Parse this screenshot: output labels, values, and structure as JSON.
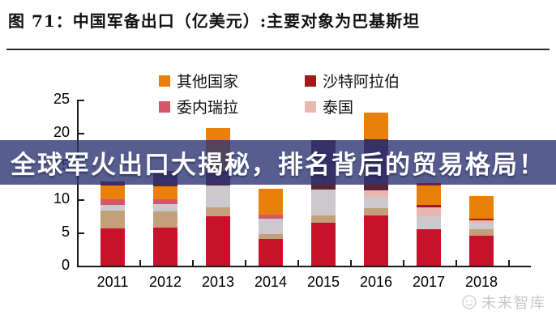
{
  "title": "图 71：中国军备出口（亿美元）:主要对象为巴基斯坦",
  "overlay": {
    "text": "全球军火出口大揭秘，排名背后的贸易格局！",
    "bg": "#2D3473"
  },
  "watermark": {
    "text": "未来智库"
  },
  "chart_data": {
    "type": "bar",
    "stacked": true,
    "title": "图 71：中国军备出口（亿美元）:主要对象为巴基斯坦",
    "categories": [
      "2011",
      "2012",
      "2013",
      "2014",
      "2015",
      "2016",
      "2017",
      "2018"
    ],
    "y_ticks": [
      0,
      5,
      10,
      15,
      20,
      25
    ],
    "ylim": [
      0,
      25
    ],
    "grid": false,
    "legend_position": "top",
    "legend": [
      {
        "label": "其他国家",
        "color_key": "orange"
      },
      {
        "label": "沙特阿拉伯",
        "color_key": "saudi_red"
      },
      {
        "label": "委内瑞拉",
        "color_key": "venezuela_rose"
      },
      {
        "label": "泰国",
        "color_key": "thai_pink"
      }
    ],
    "palette": {
      "red": "#C8112B",
      "tan": "#C2A07A",
      "gray": "#CCC9CE",
      "thai_pink": "#E9B7AF",
      "venezuela_rose": "#D4566A",
      "saudi_red": "#9E1B1A",
      "dark_wine": "#5A2433",
      "orange": "#E8800A"
    },
    "bars": [
      {
        "year": "2011",
        "total": 12.7,
        "segments": [
          [
            "red",
            5.6
          ],
          [
            "tan",
            2.7
          ],
          [
            "gray",
            0.8
          ],
          [
            "venezuela_rose",
            0.9
          ],
          [
            "orange",
            2.1
          ],
          [
            "dark_wine",
            0.6
          ]
        ]
      },
      {
        "year": "2012",
        "total": 14.3,
        "segments": [
          [
            "red",
            5.7
          ],
          [
            "tan",
            2.5
          ],
          [
            "gray",
            1.1
          ],
          [
            "venezuela_rose",
            0.7
          ],
          [
            "orange",
            2.0
          ],
          [
            "dark_wine",
            2.3
          ]
        ]
      },
      {
        "year": "2013",
        "total": 20.7,
        "segments": [
          [
            "red",
            7.4
          ],
          [
            "tan",
            1.4
          ],
          [
            "gray",
            3.3
          ],
          [
            "dark_wine",
            2.2
          ],
          [
            "orange",
            6.4
          ]
        ]
      },
      {
        "year": "2014",
        "total": 11.6,
        "segments": [
          [
            "red",
            4.0
          ],
          [
            "tan",
            0.7
          ],
          [
            "gray",
            2.4
          ],
          [
            "venezuela_rose",
            0.6
          ],
          [
            "orange",
            3.9
          ]
        ]
      },
      {
        "year": "2015",
        "total": 18.9,
        "segments": [
          [
            "red",
            6.5
          ],
          [
            "tan",
            1.1
          ],
          [
            "gray",
            3.9
          ],
          [
            "dark_wine",
            7.4
          ]
        ]
      },
      {
        "year": "2016",
        "total": 23.0,
        "segments": [
          [
            "red",
            7.6
          ],
          [
            "tan",
            1.0
          ],
          [
            "gray",
            1.8
          ],
          [
            "thai_pink",
            0.9
          ],
          [
            "dark_wine",
            7.7
          ],
          [
            "orange",
            4.0
          ]
        ]
      },
      {
        "year": "2017",
        "total": 12.5,
        "segments": [
          [
            "red",
            5.5
          ],
          [
            "gray",
            1.9
          ],
          [
            "thai_pink",
            1.4
          ],
          [
            "saudi_red",
            0.4
          ],
          [
            "orange",
            2.9
          ],
          [
            "saudi_red",
            0.4
          ]
        ]
      },
      {
        "year": "2018",
        "total": 10.5,
        "segments": [
          [
            "red",
            4.5
          ],
          [
            "tan",
            1.0
          ],
          [
            "gray",
            0.8
          ],
          [
            "thai_pink",
            0.5
          ],
          [
            "saudi_red",
            0.3
          ],
          [
            "orange",
            3.4
          ]
        ]
      }
    ]
  }
}
